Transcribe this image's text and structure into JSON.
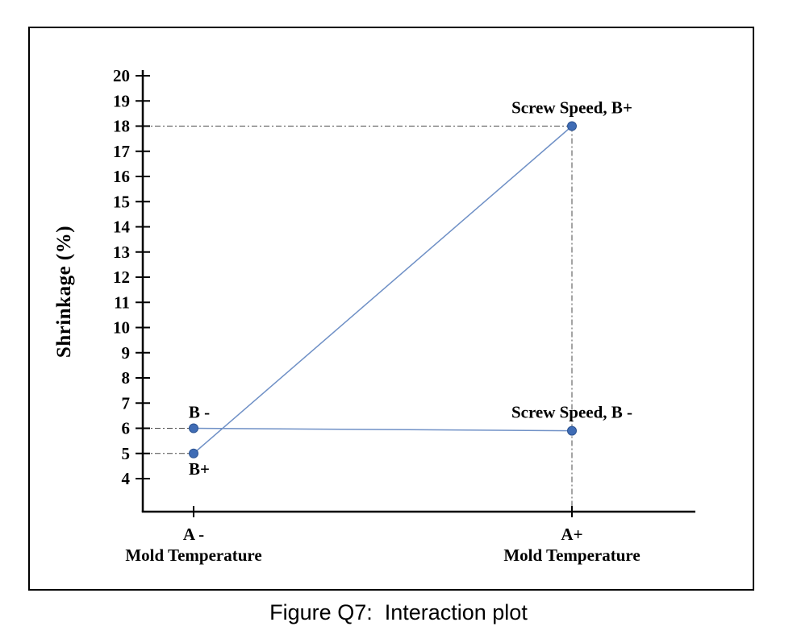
{
  "figure": {
    "caption": "Figure Q7:  Interaction plot"
  },
  "chart_data": {
    "type": "line",
    "title": "",
    "xlabel": "",
    "ylabel": "Shrinkage (%)",
    "ylim": [
      4,
      20
    ],
    "yticks": [
      20,
      19,
      18,
      17,
      16,
      15,
      14,
      13,
      12,
      11,
      10,
      9,
      8,
      7,
      6,
      5,
      4
    ],
    "grid": false,
    "legend_position": "none",
    "x_categories": [
      {
        "tick": "A -",
        "axis_label": "Mold Temperature"
      },
      {
        "tick": "A+",
        "axis_label": "Mold Temperature"
      }
    ],
    "series": [
      {
        "name": "Screw Speed, B+",
        "start_label": "B+",
        "start_label_position": "below",
        "values": [
          5,
          18
        ]
      },
      {
        "name": "Screw Speed, B -",
        "start_label": "B -",
        "start_label_position": "above",
        "values": [
          6,
          5.9
        ]
      }
    ],
    "guide_lines": [
      {
        "kind": "h",
        "y": 18,
        "x_from": "y-axis",
        "x_to": "A+"
      },
      {
        "kind": "v",
        "x": "A+",
        "y_from": 18,
        "y_to": "x-axis"
      },
      {
        "kind": "h",
        "y": 6,
        "x_from": "y-axis",
        "x_to": "A -"
      },
      {
        "kind": "h",
        "y": 5,
        "x_from": "y-axis",
        "x_to": "A -"
      }
    ],
    "colors": {
      "point": "#3f6cb5",
      "point_border": "#2d5492",
      "line": "#6f90c6",
      "guide": "#4a4a4a",
      "axis": "#000000"
    }
  }
}
